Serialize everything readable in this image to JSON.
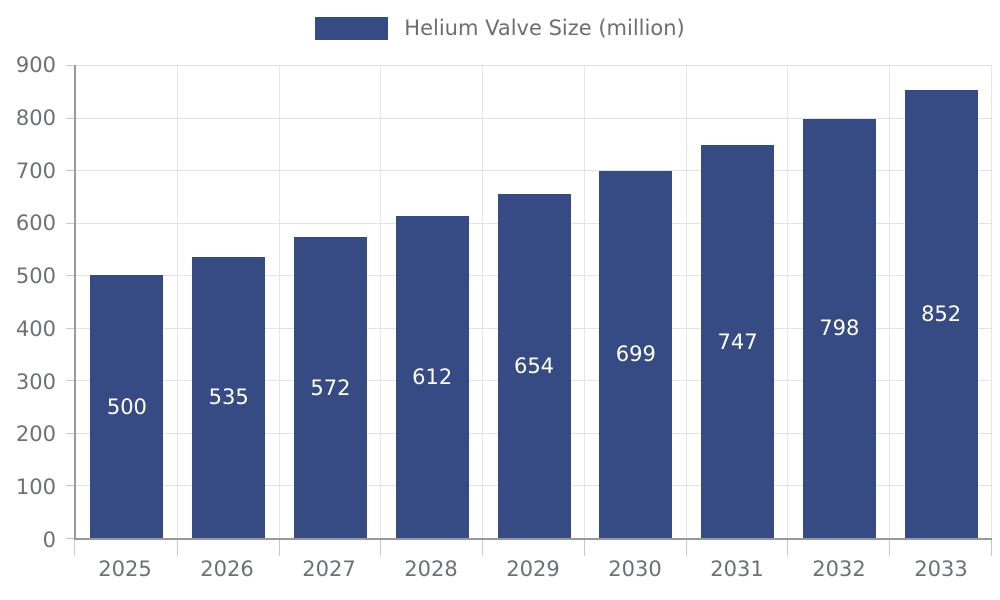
{
  "legend": {
    "label": "Helium Valve Size (million)"
  },
  "chart_data": {
    "type": "bar",
    "title": "Helium Valve Size (million)",
    "categories": [
      "2025",
      "2026",
      "2027",
      "2028",
      "2029",
      "2030",
      "2031",
      "2032",
      "2033"
    ],
    "values": [
      500,
      535,
      572,
      612,
      654,
      699,
      747,
      798,
      852
    ],
    "xlabel": "",
    "ylabel": "",
    "ylim": [
      0,
      900
    ],
    "y_ticks": [
      0,
      100,
      200,
      300,
      400,
      500,
      600,
      700,
      800,
      900
    ],
    "grid": true,
    "legend_position": "top",
    "colors": {
      "bar": "#364a83",
      "value_label": "#ffffff",
      "axis_label": "#6e7079",
      "legend_text": "#6e6e6e",
      "axis_line": "#999999",
      "h_gridline": "#e0e3eb",
      "v_gridline": "#e6e6e6",
      "tick": "#c9c9c9",
      "background": "#ffffff"
    }
  }
}
